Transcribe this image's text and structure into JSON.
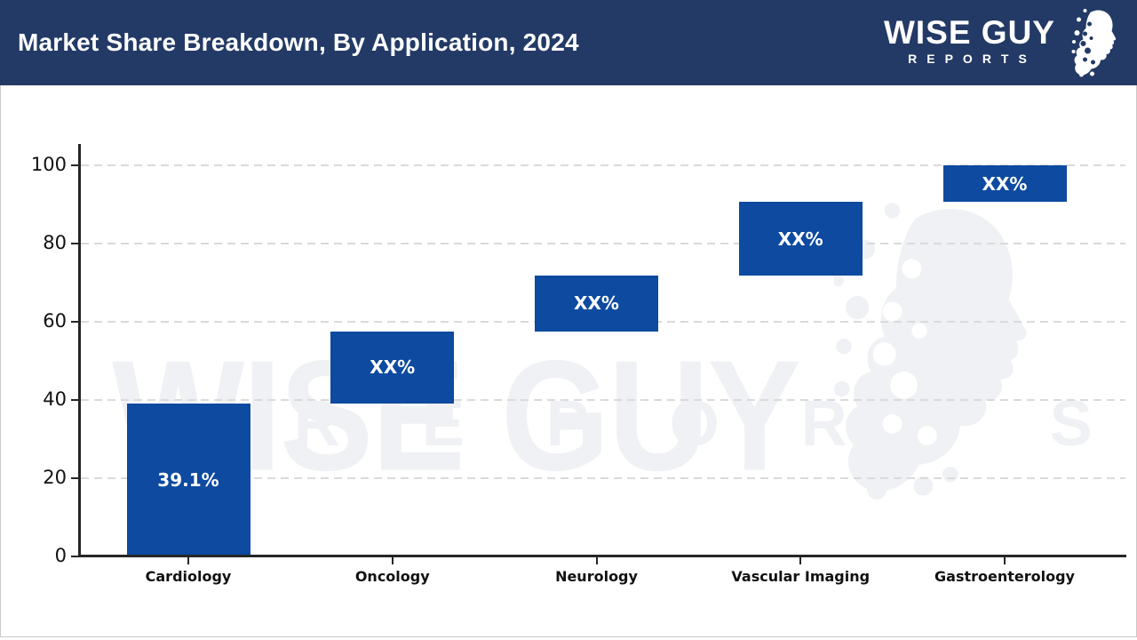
{
  "header": {
    "title": "Market Share Breakdown, By Application, 2024",
    "logo": {
      "line1": "WISE GUY",
      "line2": "REPORTS"
    }
  },
  "watermark": {
    "line1": "WISE GUY",
    "line2": "R E P O R T S"
  },
  "colors": {
    "header_background": "#233a66",
    "bar": "#0d4aa0",
    "bar_label": "#ffffff",
    "gridline": "#dadada",
    "axis": "#262626",
    "watermark": "#f0f1f4"
  },
  "chart_data": {
    "type": "bar",
    "subtype": "waterfall",
    "title": "Market Share Breakdown, By Application, 2024",
    "xlabel": "",
    "ylabel": "",
    "ylim": [
      0,
      100
    ],
    "yticks": [
      0,
      20,
      40,
      60,
      80,
      100
    ],
    "grid": "horizontal-dashed",
    "legend": "none",
    "categories": [
      "Cardiology",
      "Oncology",
      "Neurology",
      "Vascular Imaging",
      "Gastroenterology"
    ],
    "segments": [
      {
        "category": "Cardiology",
        "start": 0,
        "end": 39.1,
        "label": "39.1%"
      },
      {
        "category": "Oncology",
        "start": 39.1,
        "end": 57.5,
        "label": "XX%"
      },
      {
        "category": "Neurology",
        "start": 57.5,
        "end": 71.9,
        "label": "XX%"
      },
      {
        "category": "Vascular Imaging",
        "start": 71.9,
        "end": 90.6,
        "label": "XX%"
      },
      {
        "category": "Gastroenterology",
        "start": 90.6,
        "end": 100,
        "label": "XX%"
      }
    ]
  }
}
